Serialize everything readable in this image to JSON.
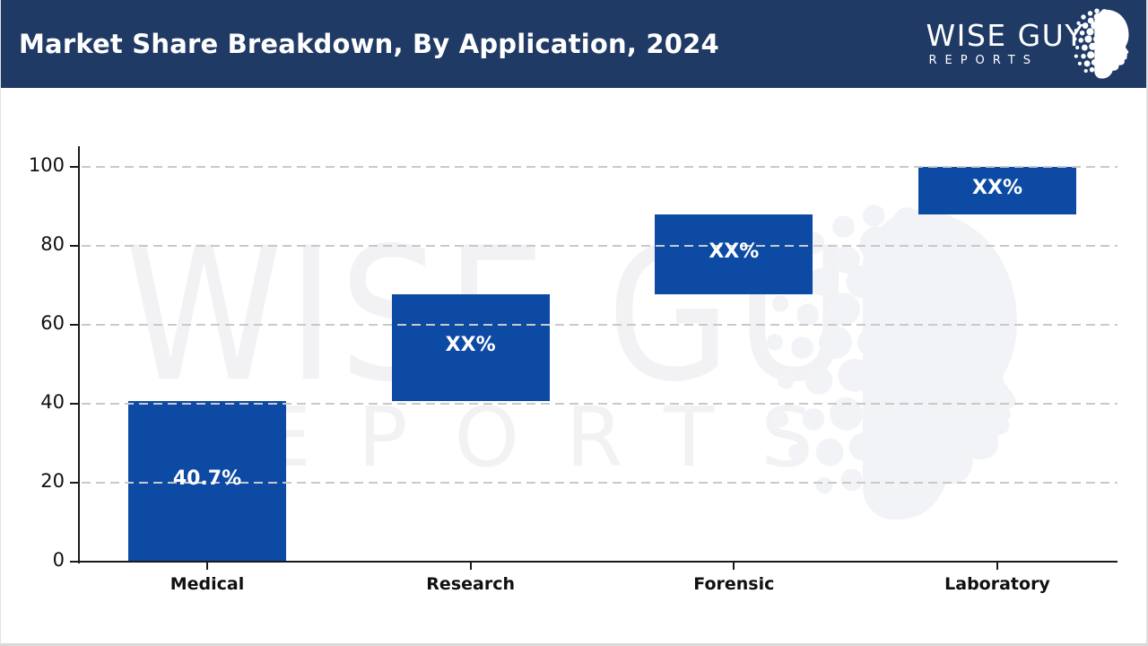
{
  "header": {
    "title": "Market Share Breakdown, By Application, 2024"
  },
  "brand": {
    "name": "WISE GUY",
    "sub": "REPORTS"
  },
  "chart_data": {
    "type": "bar",
    "variant": "waterfall",
    "title": "Market Share Breakdown, By Application, 2024",
    "categories": [
      "Medical",
      "Research",
      "Forensic",
      "Laboratory"
    ],
    "segments": [
      {
        "category": "Medical",
        "start": 0,
        "end": 40.7,
        "value": 40.7,
        "label": "40.7%"
      },
      {
        "category": "Research",
        "start": 40.7,
        "end": 67.7,
        "value": 27.0,
        "label": "XX%"
      },
      {
        "category": "Forensic",
        "start": 67.7,
        "end": 88.0,
        "value": 20.3,
        "label": "XX%"
      },
      {
        "category": "Laboratory",
        "start": 88.0,
        "end": 100.0,
        "value": 12.0,
        "label": "XX%"
      }
    ],
    "yticks": [
      0,
      20,
      40,
      60,
      80,
      100
    ],
    "ylim": [
      0,
      105
    ],
    "xlabel": "",
    "ylabel": "",
    "grid": "horizontal-dashed",
    "legend": "none",
    "bar_color": "#0d4aa3",
    "bar_label_color": "#ffffff"
  },
  "colors": {
    "header_bg": "#203a66",
    "bar": "#0d4aa3",
    "grid": "#c9c9c9",
    "axis": "#1a1a1a",
    "tick_text": "#101010",
    "watermark": "#f2f2f4",
    "page_border": "#d9d9d9",
    "title_text": "#ffffff"
  }
}
